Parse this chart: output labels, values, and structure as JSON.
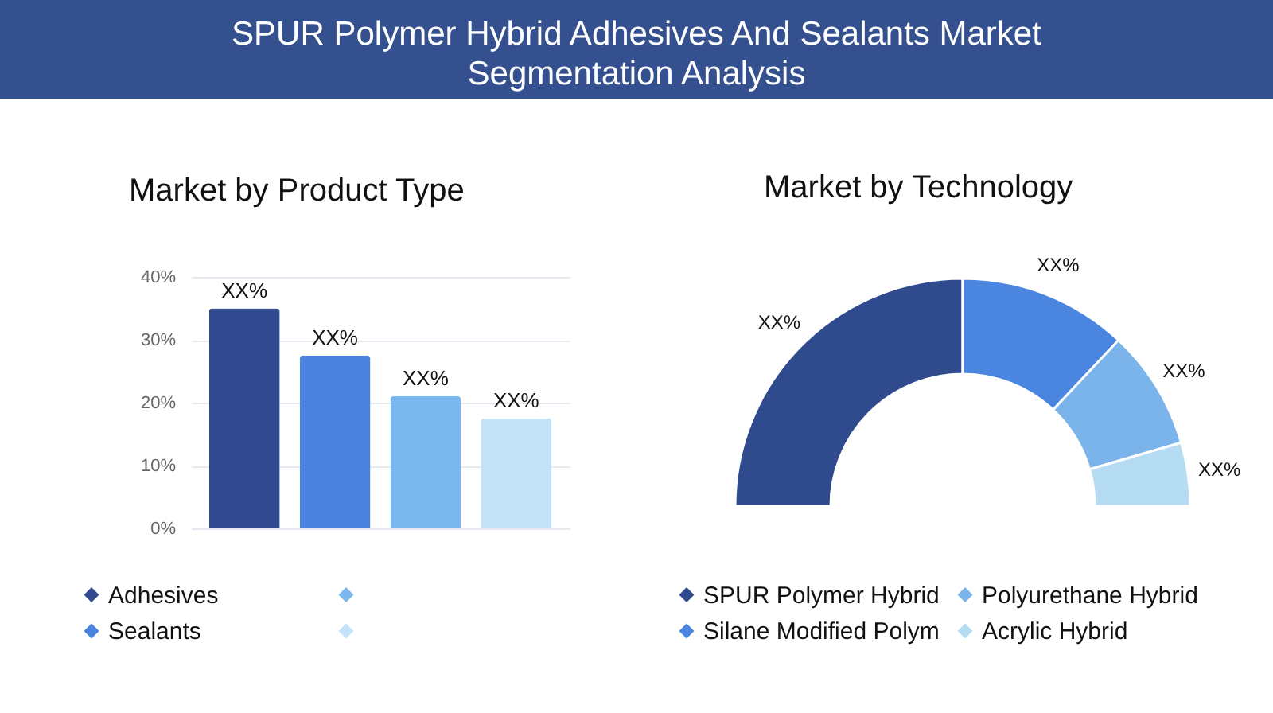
{
  "chart_data": [
    {
      "type": "other",
      "title": "SPUR Polymer Hybrid Adhesives And Sealants Market Segmentation Analysis"
    },
    {
      "type": "bar",
      "title": "Market by Product Type",
      "categories": [
        null,
        null,
        null,
        null
      ],
      "stacked": true,
      "series": [
        {
          "name": "Adhesives",
          "color": "#30498f",
          "values": [
            35,
            null,
            null,
            null
          ],
          "value_labels": [
            "XX%",
            null,
            null,
            null
          ]
        },
        {
          "name": "Sealants",
          "color": "#4a84e0",
          "values": [
            null,
            27.5,
            null,
            null
          ],
          "value_labels": [
            null,
            "XX%",
            null,
            null
          ]
        },
        {
          "color": "#7cb8f0",
          "values": [
            null,
            null,
            21,
            null
          ],
          "value_labels": [
            null,
            null,
            "XX%",
            null
          ]
        },
        {
          "color": "#c3e3f8",
          "values": [
            null,
            null,
            null,
            17.5
          ],
          "value_labels": [
            null,
            null,
            null,
            "XX%"
          ]
        }
      ],
      "ylim": [
        0,
        40
      ],
      "yticks": [
        {
          "value": 0,
          "label": "0%"
        },
        {
          "value": 10,
          "label": "10%"
        },
        {
          "value": 20,
          "label": "20%"
        },
        {
          "value": 30,
          "label": "30%"
        },
        {
          "value": 40,
          "label": "40%"
        }
      ],
      "grid": "y",
      "legend": "bottom",
      "tick_labels": "y"
    },
    {
      "type": "donut",
      "title": "Market by Technology",
      "categories": [
        "SPUR Polymer Hybrid",
        "Silane Modified Polym",
        "Polyurethane Hybrid",
        "Acrylic Hybrid"
      ],
      "values": [
        50,
        24,
        17,
        9
      ],
      "colors": [
        "#2f4b8e",
        "#4a86df",
        "#7ab4ea",
        "#b5dcf2"
      ],
      "value_labels": [
        "XX%",
        "XX%",
        "XX%",
        "XX%"
      ],
      "legend": "bottom"
    }
  ]
}
